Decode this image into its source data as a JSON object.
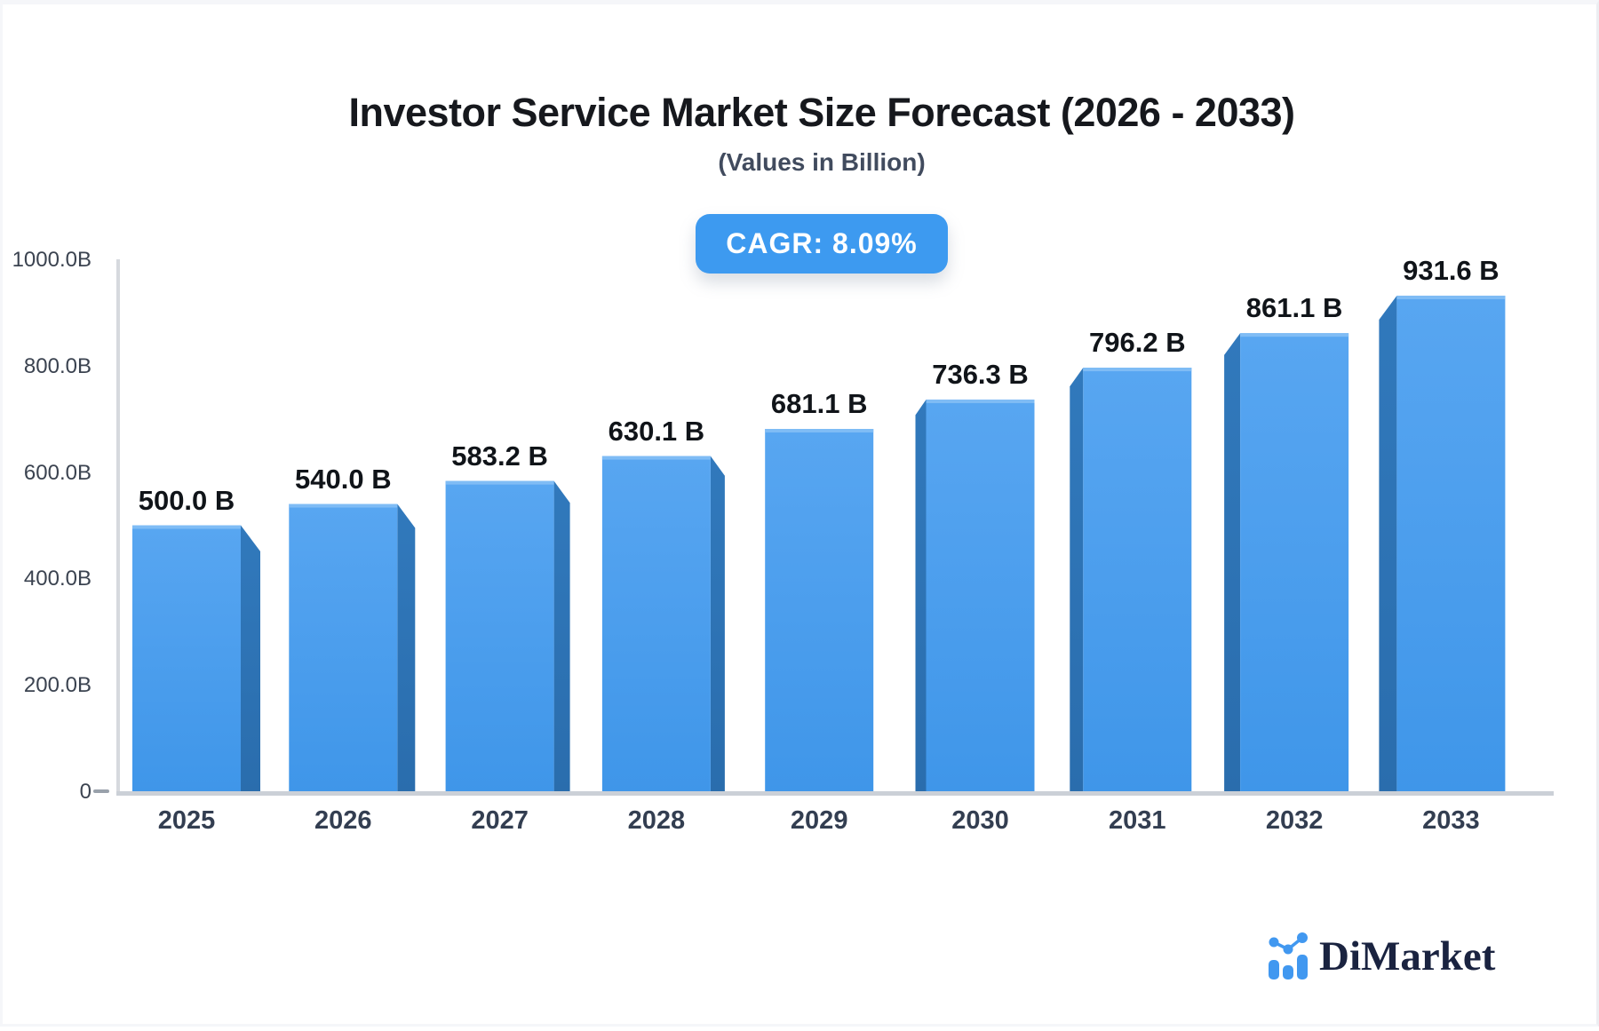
{
  "header": {
    "title": "Investor Service Market Size Forecast (2026 - 2033)",
    "subtitle": "(Values in Billion)",
    "cagr_badge": "CAGR: 8.09%"
  },
  "footer": {
    "brand": "DiMarket"
  },
  "chart_data": {
    "type": "bar",
    "title": "Investor Service Market Size Forecast (2026 - 2033)",
    "subtitle": "(Values in Billion)",
    "cagr": "8.09%",
    "categories": [
      "2025",
      "2026",
      "2027",
      "2028",
      "2029",
      "2030",
      "2031",
      "2032",
      "2033"
    ],
    "values": [
      500.0,
      540.0,
      583.2,
      630.1,
      681.1,
      736.3,
      796.2,
      861.1,
      931.6
    ],
    "value_labels": [
      "500.0 B",
      "540.0 B",
      "583.2 B",
      "630.1 B",
      "681.1 B",
      "736.3 B",
      "796.2 B",
      "861.1 B",
      "931.6 B"
    ],
    "y_ticks": [
      {
        "label": "1000.0B",
        "value": 1000
      },
      {
        "label": "800.0B",
        "value": 800
      },
      {
        "label": "600.0B",
        "value": 600
      },
      {
        "label": "400.0B",
        "value": 400
      },
      {
        "label": "200.0B",
        "value": 200
      },
      {
        "label": "0",
        "value": 0
      }
    ],
    "ylim": [
      0,
      1000
    ],
    "xlabel": "",
    "ylabel": "",
    "grid": false,
    "legend": null,
    "colors": {
      "bar_face_top": "#58a6f1",
      "bar_face_bottom": "#3f96e9",
      "bar_side": "#2c73b5",
      "bar_highlight": "#7fbcf5",
      "axis": "#cdd2d9",
      "badge": "#3d9af0",
      "brand_blue": "#4198f0",
      "brand_navy": "#1a2340"
    }
  }
}
